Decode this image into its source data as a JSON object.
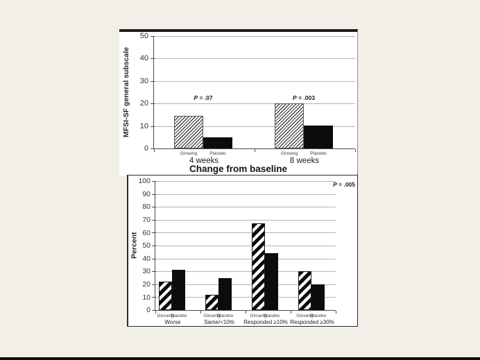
{
  "page": {
    "background_color": "#f2efe9",
    "bottom_strip_color": "#101010"
  },
  "chart_data": [
    {
      "id": "mfsi-change-chart",
      "type": "bar",
      "title": "",
      "xlabel": "Change from baseline",
      "ylabel": "MFSI-SF general subscale",
      "ylim": [
        0,
        50
      ],
      "yticks": [
        0,
        10,
        20,
        30,
        40,
        50
      ],
      "grid": true,
      "legend_position": "none",
      "categories": [
        "4 weeks",
        "8 weeks"
      ],
      "bar_labels": [
        "Ginseng",
        "Placebo"
      ],
      "series": [
        {
          "name": "Ginseng",
          "style": "hatched",
          "values": [
            14.5,
            20
          ]
        },
        {
          "name": "Placebo",
          "style": "solid",
          "values": [
            5,
            10.3
          ]
        }
      ],
      "annotations": [
        {
          "text": "P = .07",
          "category": "4 weeks"
        },
        {
          "text": "P = .003",
          "category": "8 weeks"
        }
      ]
    },
    {
      "id": "percent-response-chart",
      "type": "bar",
      "title": "",
      "xlabel": "",
      "ylabel": "Percent",
      "ylim": [
        0,
        100
      ],
      "yticks": [
        0,
        10,
        20,
        30,
        40,
        50,
        60,
        70,
        80,
        90,
        100
      ],
      "grid": true,
      "legend_position": "none",
      "categories": [
        "Worse",
        "Same/<10%",
        "Responded ≥10%",
        "Responded ≥30%"
      ],
      "bar_labels": [
        "Ginseng",
        "Placebo"
      ],
      "series": [
        {
          "name": "Ginseng",
          "style": "hatched",
          "values": [
            22,
            12,
            67,
            30
          ]
        },
        {
          "name": "Placebo",
          "style": "solid",
          "values": [
            31,
            25,
            44,
            20
          ]
        }
      ],
      "annotations": [
        {
          "text": "P = .005",
          "position": "top-right"
        }
      ]
    }
  ]
}
